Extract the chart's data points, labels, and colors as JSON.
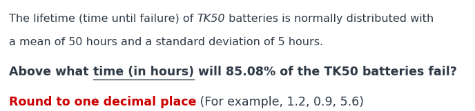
{
  "line1_part1": "The lifetime (time until failure) of ",
  "line1_italic": "TK50",
  "line1_part2": " batteries is normally distributed with",
  "line2": "a mean of 50 hours and a standard deviation of 5 hours.",
  "line3_part1": "Above what ",
  "line3_underline": "time (in hours)",
  "line3_part2": " will 85.08% of the TK50 batteries fail?",
  "line4_red": "Round to one decimal place",
  "line4_normal": " (For example, 1.2, 0.9, 5.6)",
  "bg_color": "#ffffff",
  "text_color": "#2e3a47",
  "red_color": "#cc0000",
  "font_size": 11.5,
  "font_size_bold": 12.5,
  "fig_width": 6.88,
  "fig_height": 1.62,
  "dpi": 100
}
